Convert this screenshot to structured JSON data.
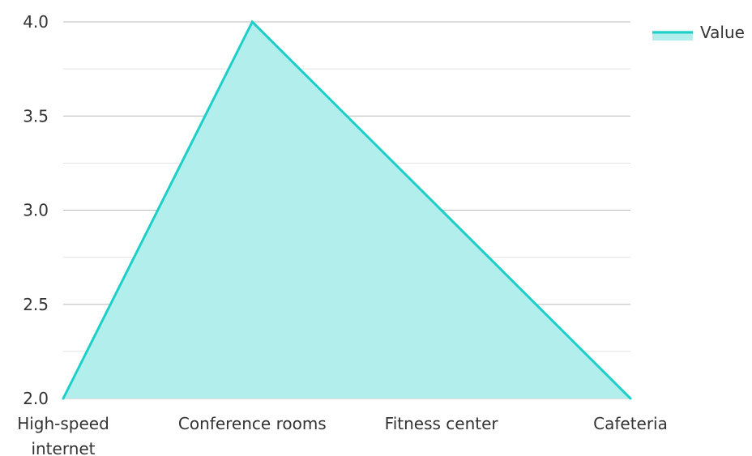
{
  "chart_data": {
    "type": "area",
    "categories": [
      "High-speed internet",
      "Conference rooms",
      "Fitness center",
      "Cafeteria"
    ],
    "category_lines": [
      [
        "High-speed",
        "internet"
      ],
      [
        "Conference rooms"
      ],
      [
        "Fitness center"
      ],
      [
        "Cafeteria"
      ]
    ],
    "series": [
      {
        "name": "Value",
        "values": [
          2.0,
          4.0,
          3.0,
          2.0
        ]
      }
    ],
    "yticks": [
      "2.0",
      "2.5",
      "3.0",
      "3.5",
      "4.0"
    ],
    "ylim": [
      2.0,
      4.0
    ],
    "grid": true,
    "legend": {
      "position": "top-right",
      "label": "Value"
    },
    "colors": {
      "line": "#1ccfc9",
      "fill": "#b2eeec",
      "grid_major": "#bbbbbb",
      "grid_minor": "#e3e3e3",
      "text": "#333333"
    }
  }
}
